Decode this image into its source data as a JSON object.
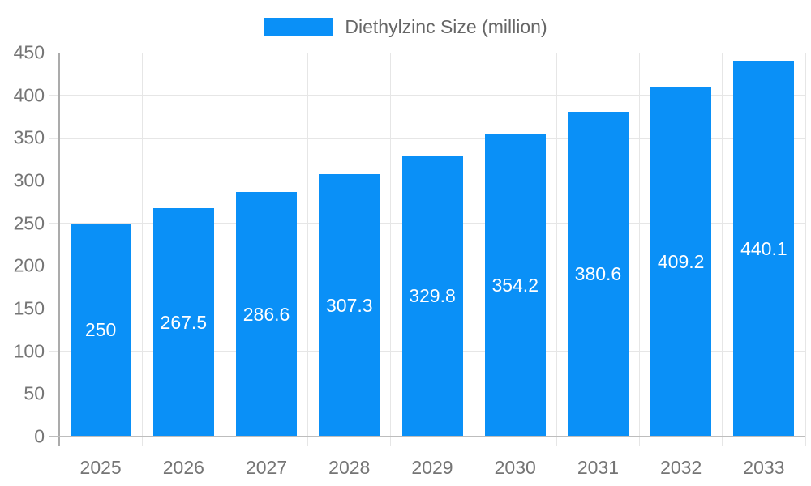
{
  "chart_data": {
    "type": "bar",
    "legend": "Diethylzinc Size (million)",
    "legend_position": "top",
    "categories": [
      "2025",
      "2026",
      "2027",
      "2028",
      "2029",
      "2030",
      "2031",
      "2032",
      "2033"
    ],
    "values": [
      250,
      267.5,
      286.6,
      307.3,
      329.8,
      354.2,
      380.6,
      409.2,
      440.1
    ],
    "value_labels": [
      "250",
      "267.5",
      "286.6",
      "307.3",
      "329.8",
      "354.2",
      "380.6",
      "409.2",
      "440.1"
    ],
    "xlabel": "",
    "ylabel": "",
    "ylim": [
      0,
      450
    ],
    "ytick_step": 50,
    "yticks": [
      0,
      50,
      100,
      150,
      200,
      250,
      300,
      350,
      400,
      450
    ],
    "grid": true,
    "colors": {
      "bar": "#0A90F7",
      "grid": "#e6e6e6",
      "axis": "#ababab",
      "baseline": "#bdbdbd",
      "axis_label": "#757575",
      "legend_text": "#666666",
      "value_label": "#ffffff",
      "background": "#ffffff"
    }
  }
}
